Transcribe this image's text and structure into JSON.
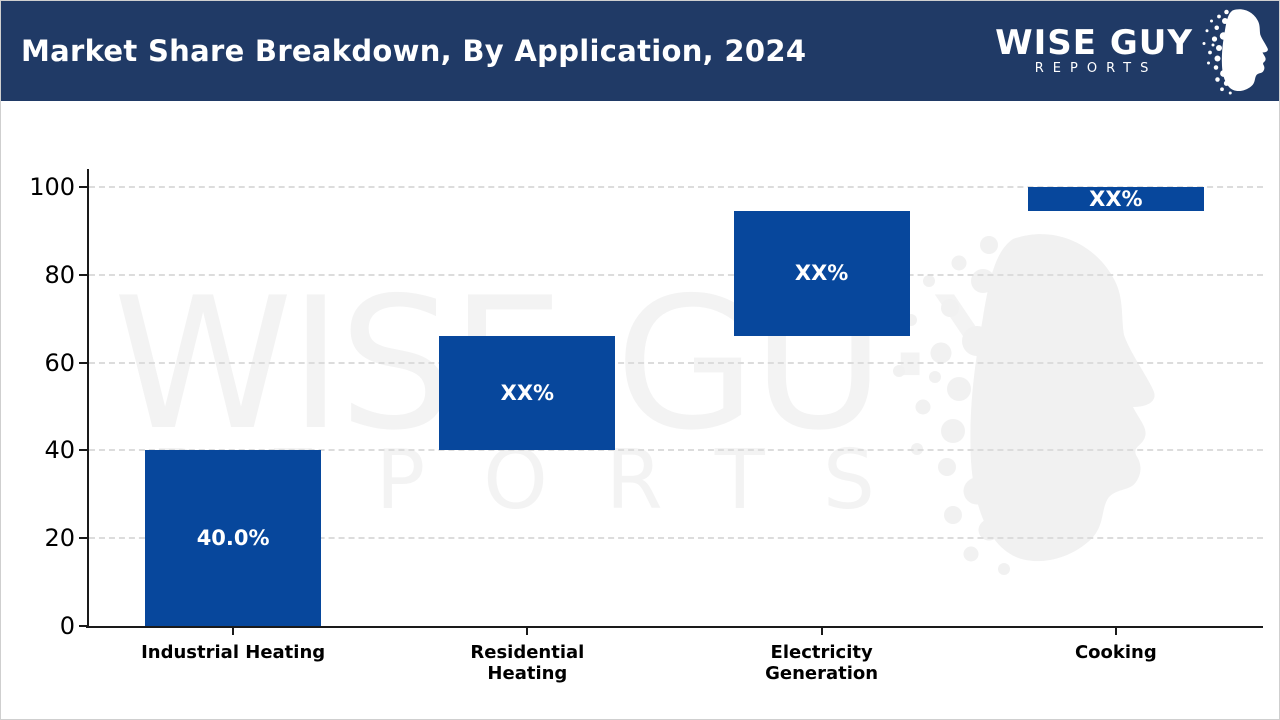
{
  "header": {
    "title": "Market Share Breakdown, By Application, 2024",
    "bg_color": "#203A66",
    "logo": {
      "line1": "WISE GUY",
      "line2": "REPORTS"
    }
  },
  "watermark": {
    "line1": "WISE GU·Y",
    "line2": "REPORTS"
  },
  "chart_data": {
    "type": "bar",
    "subtype": "waterfall",
    "title": "Market Share Breakdown, By Application, 2024",
    "categories": [
      "Industrial Heating",
      "Residential\nHeating",
      "Electricity\nGeneration",
      "Cooking"
    ],
    "segments": [
      {
        "category": "Industrial Heating",
        "start": 0,
        "end": 40,
        "label": "40.0%"
      },
      {
        "category": "Residential\nHeating",
        "start": 40,
        "end": 66,
        "label": "XX%"
      },
      {
        "category": "Electricity\nGeneration",
        "start": 66,
        "end": 94.5,
        "label": "XX%"
      },
      {
        "category": "Cooking",
        "start": 94.5,
        "end": 100,
        "label": "XX%"
      }
    ],
    "bar_color": "#07479C",
    "bar_label_color": "#ffffff",
    "yticks": [
      0,
      20,
      40,
      60,
      80,
      100
    ],
    "ylim": [
      0,
      105
    ],
    "xlabel": "",
    "ylabel": "",
    "grid": "horizontal-dashed",
    "legend": "none"
  }
}
